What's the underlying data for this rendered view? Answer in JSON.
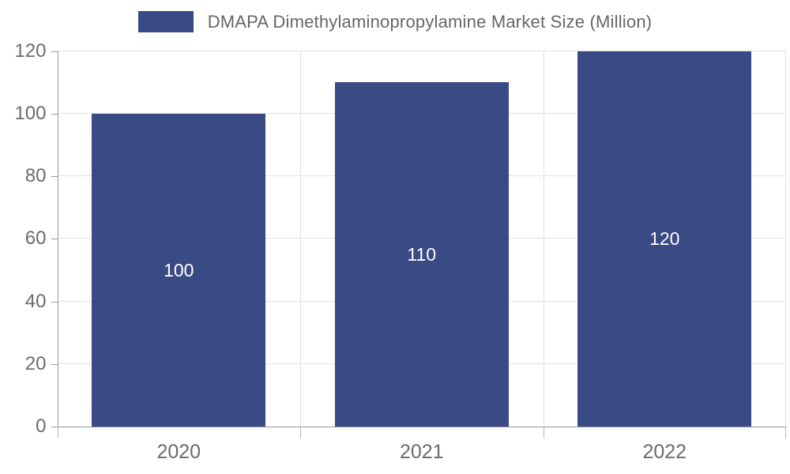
{
  "legend": {
    "label": "DMAPA Dimethylaminopropylamine Market Size (Million)"
  },
  "colors": {
    "bar": "#3A4A84",
    "grid": "#E2E2E2",
    "axis": "#999999",
    "tick": "#B4B6C0",
    "axis_label": "#6B6B6B",
    "data_label": "#FFFFFF"
  },
  "chart_data": {
    "type": "bar",
    "title": "",
    "categories": [
      "2020",
      "2021",
      "2022"
    ],
    "series": [
      {
        "name": "DMAPA Dimethylaminopropylamine Market Size (Million)",
        "values": [
          100,
          110,
          120
        ],
        "data_labels": [
          "100",
          "110",
          "120"
        ]
      }
    ],
    "xlabel": "",
    "ylabel": "",
    "ylim": [
      0,
      120
    ],
    "ytick_step": 20,
    "yticks": [
      0,
      20,
      40,
      60,
      80,
      100,
      120
    ],
    "grid": true,
    "legend_position": "top-center",
    "data_label_position": "inside-middle"
  }
}
